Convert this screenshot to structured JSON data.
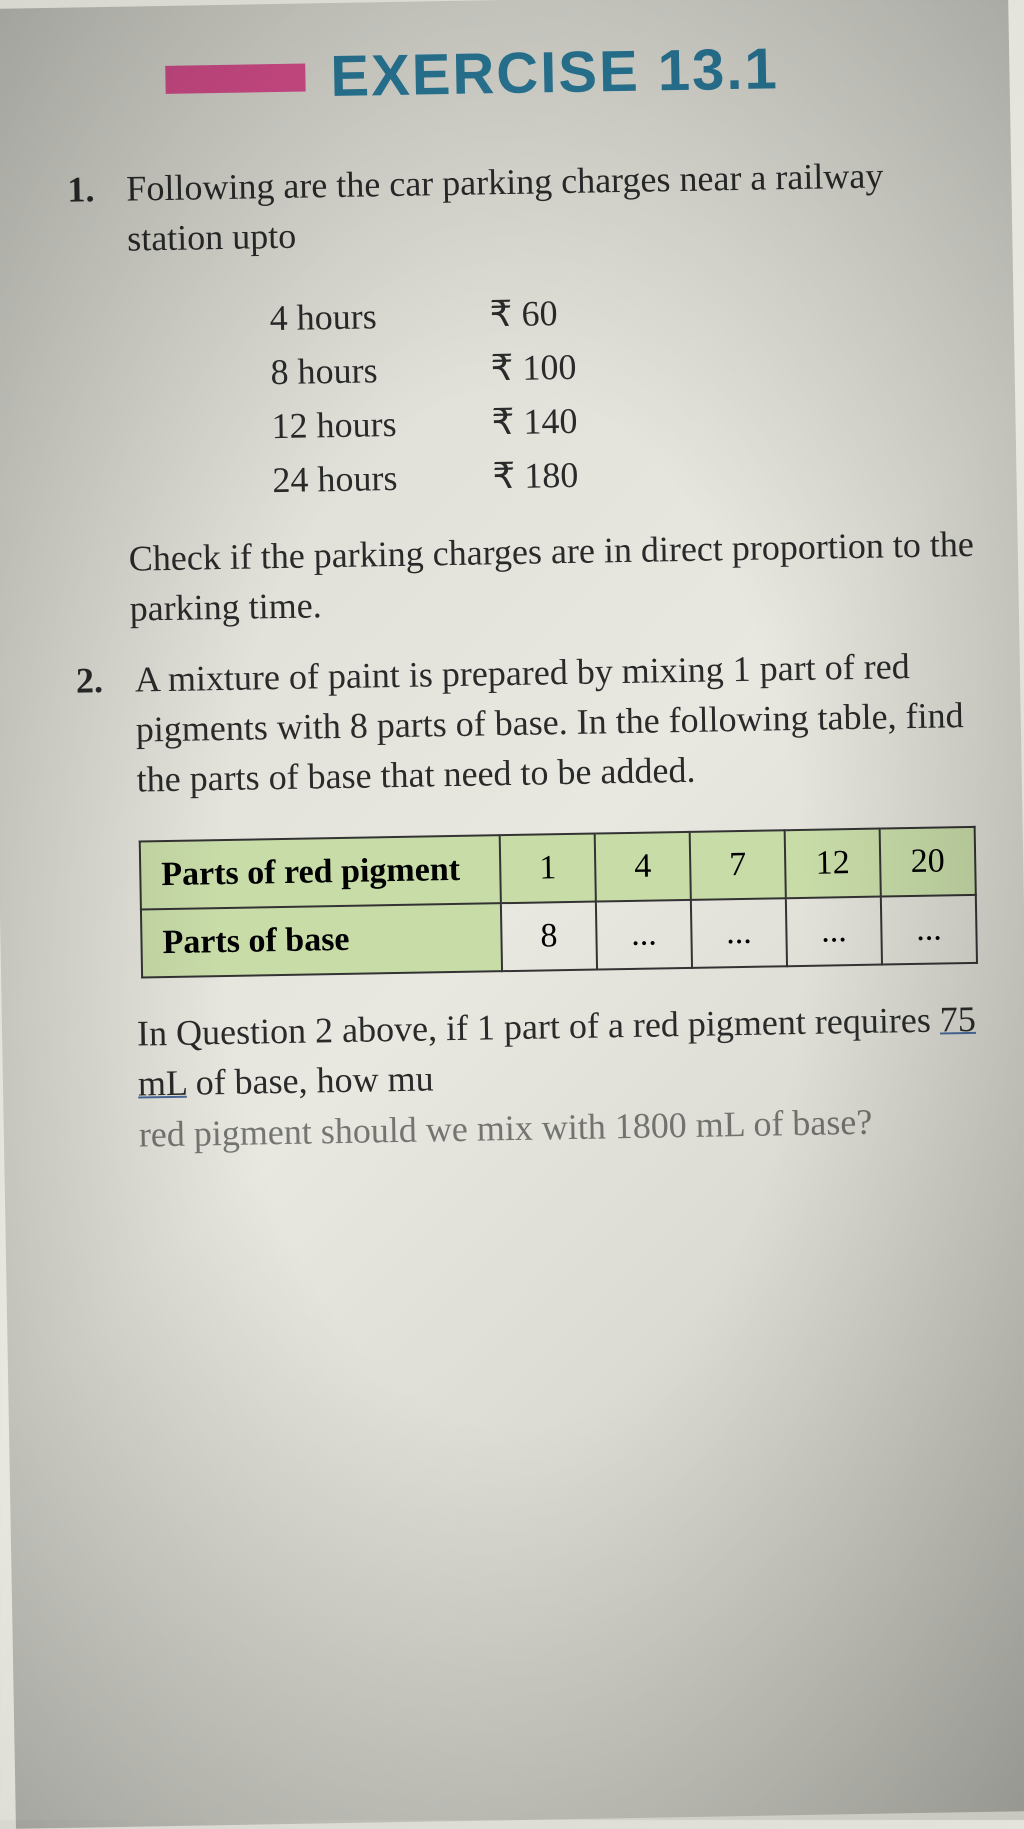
{
  "exercise": {
    "title": "EXERCISE 13.1",
    "pink_bar_color": "#d94f8e",
    "title_color": "#2a7a9a"
  },
  "q1": {
    "num": "1.",
    "text": "Following are the car parking charges near a railway station upto",
    "parking": [
      {
        "hours": "4 hours",
        "charge": "₹ 60"
      },
      {
        "hours": "8 hours",
        "charge": "₹ 100"
      },
      {
        "hours": "12 hours",
        "charge": "₹ 140"
      },
      {
        "hours": "24 hours",
        "charge": "₹ 180"
      }
    ],
    "check_text": "Check if the parking charges are in direct proportion to the parking time."
  },
  "q2": {
    "num": "2.",
    "text": "A mixture of paint is prepared by mixing 1 part of red pigments with 8 parts of base. In the following table, find the parts of base that need to be added.",
    "table": {
      "row1_header": "Parts of red pigment",
      "row2_header": "Parts of base",
      "row1": [
        "1",
        "4",
        "7",
        "12",
        "20"
      ],
      "row2": [
        "8",
        "...",
        "...",
        "...",
        "..."
      ],
      "header_bg": "#c8dca8"
    },
    "followup": "In Question 2 above, if 1 part of a red pigment requires 75 mL of base, how mu",
    "cutoff": "red pigment should we mix with 1800 mL of base?"
  }
}
